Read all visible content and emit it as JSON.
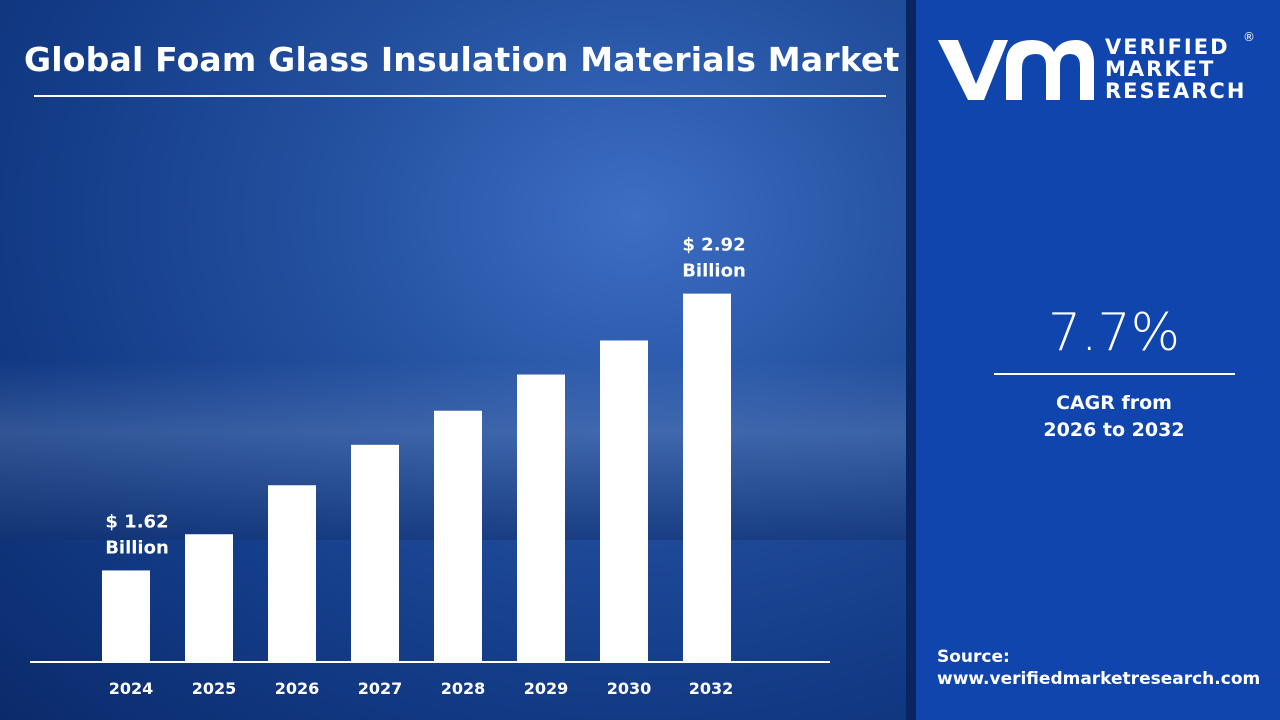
{
  "title": "Global Foam Glass Insulation Materials Market",
  "brand": {
    "line1": "VERIFIED",
    "line2": "MARKET",
    "line3": "RESEARCH",
    "registered": "®",
    "colors": {
      "panel": "#1045ad",
      "bars": "#ffffff"
    }
  },
  "cagr": {
    "value": "7.7%",
    "label_line1": "CAGR from",
    "label_line2": "2026 to 2032"
  },
  "source": {
    "label": "Source:",
    "url": "www.verifiedmarketresearch.com"
  },
  "chart_data": {
    "type": "bar",
    "categories": [
      "2024",
      "2025",
      "2026",
      "2027",
      "2028",
      "2029",
      "2030",
      "2032"
    ],
    "values": [
      1.62,
      1.79,
      2.02,
      2.21,
      2.37,
      2.54,
      2.7,
      2.92
    ],
    "annotations": [
      {
        "category": "2024",
        "line1": "$ 1.62",
        "line2": "Billion"
      },
      {
        "category": "2032",
        "line1": "$ 2.92",
        "line2": "Billion"
      }
    ],
    "title": "Global Foam Glass Insulation Materials Market",
    "xlabel": "",
    "ylabel": "",
    "ylim": [
      1.19,
      3.2
    ],
    "grid": false,
    "legend": "none"
  }
}
